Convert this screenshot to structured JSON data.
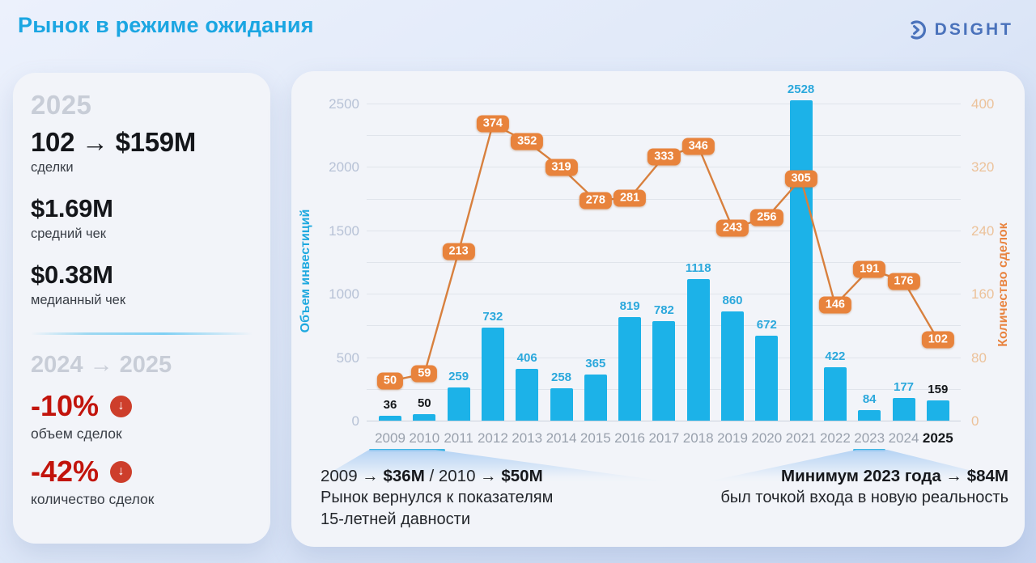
{
  "page": {
    "title": "Рынок в режиме ожидания"
  },
  "logo": {
    "text": "DSIGHT",
    "color": "#4a72bb",
    "icon": "dsight-chevron-circle"
  },
  "colors": {
    "accent_cyan": "#1cb2e8",
    "accent_orange": "#e8833c",
    "title_cyan": "#1ba6e2",
    "negative_red": "#c2140c",
    "red_badge": "#cd3e2b",
    "card_bg": "#f2f4f9"
  },
  "sidebar": {
    "year_label": "2025",
    "deals_value": "102 → $159M",
    "deals_caption": "сделки",
    "avg_value": "$1.69M",
    "avg_caption": "средний чек",
    "median_value": "$0.38M",
    "median_caption": "медианный чек",
    "period_label": "2024 → 2025",
    "metrics": [
      {
        "value": "-10%",
        "caption": "объем сделок",
        "direction": "down"
      },
      {
        "value": "-42%",
        "caption": "количество сделок",
        "direction": "down"
      }
    ],
    "down_arrow_glyph": "↓"
  },
  "chart_data": {
    "type": "bar+line",
    "categories": [
      "2009",
      "2010",
      "2011",
      "2012",
      "2013",
      "2014",
      "2015",
      "2016",
      "2017",
      "2018",
      "2019",
      "2020",
      "2021",
      "2022",
      "2023",
      "2024",
      "2025"
    ],
    "series": [
      {
        "name": "Объем инвестиций",
        "type": "bar",
        "axis": "left",
        "values": [
          36,
          50,
          259,
          732,
          406,
          258,
          365,
          819,
          782,
          1118,
          860,
          672,
          2528,
          422,
          84,
          177,
          159
        ]
      },
      {
        "name": "Количество сделок",
        "type": "line",
        "axis": "right",
        "values": [
          50,
          59,
          213,
          374,
          352,
          319,
          278,
          281,
          333,
          346,
          243,
          256,
          305,
          146,
          191,
          176,
          102
        ]
      }
    ],
    "left_axis": {
      "label": "Объем инвестиций",
      "ticks": [
        0,
        500,
        1000,
        1500,
        2000,
        2500
      ],
      "lim": [
        0,
        2500
      ],
      "minor_step": 250
    },
    "right_axis": {
      "label": "Количество сделок",
      "ticks": [
        0,
        80,
        160,
        240,
        320,
        400
      ],
      "lim": [
        0,
        400
      ]
    },
    "grid": true,
    "dark_label_indices": [
      0,
      1,
      16
    ],
    "underline_groups": [
      [
        0,
        1
      ],
      [
        14
      ]
    ]
  },
  "annotations": {
    "left": {
      "title_parts": [
        {
          "text": "2009 → ",
          "bold": false
        },
        {
          "text": "$36M",
          "bold": true
        },
        {
          "text": " / 2010 → ",
          "bold": false
        },
        {
          "text": "$50M",
          "bold": true
        }
      ],
      "lines": [
        "Рынок вернулся к показателям",
        "15-летней давности"
      ]
    },
    "right": {
      "title_parts": [
        {
          "text": "Минимум 2023 года → $84M",
          "bold": true
        }
      ],
      "lines": [
        "был точкой входа в новую реальность"
      ]
    }
  }
}
